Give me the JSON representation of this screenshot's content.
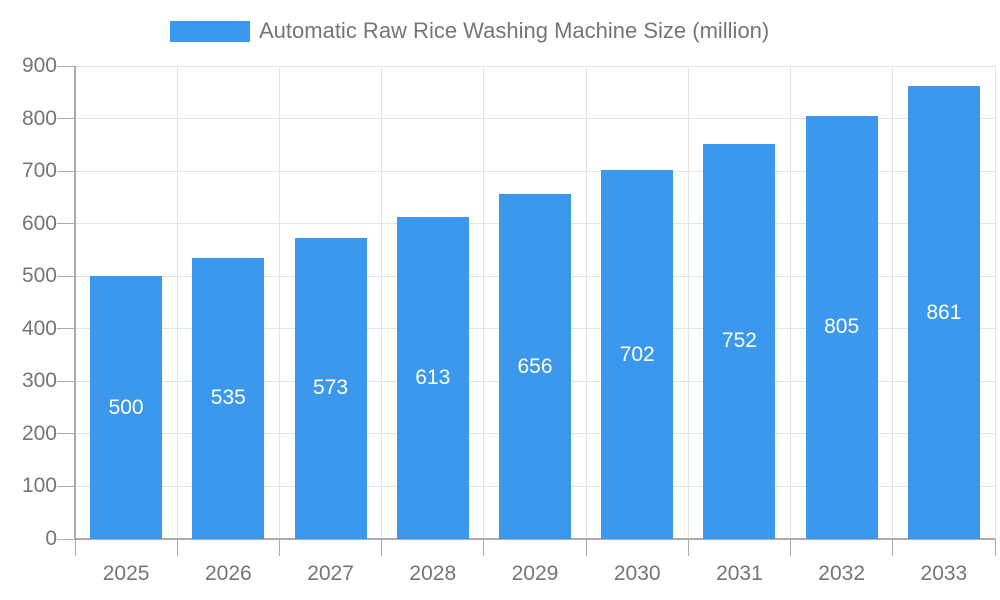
{
  "legend": {
    "label": "Automatic Raw Rice Washing Machine Size (million)"
  },
  "chart_data": {
    "type": "bar",
    "title": "Automatic Raw Rice Washing Machine Size (million)",
    "categories": [
      "2025",
      "2026",
      "2027",
      "2028",
      "2029",
      "2030",
      "2031",
      "2032",
      "2033"
    ],
    "values": [
      500,
      535,
      573,
      613,
      656,
      702,
      752,
      805,
      861
    ],
    "series_name": "Automatic Raw Rice Washing Machine Size (million)",
    "xlabel": "",
    "ylabel": "",
    "ylim": [
      0,
      900
    ],
    "ytick_step": 100,
    "grid": true,
    "legend_position": "top",
    "data_labels": "inside-center",
    "colors": {
      "bar": "#3b98ec",
      "bar_label": "#ffffff",
      "text": "#757575",
      "grid": "#e3e3e3",
      "axis": "#ababab",
      "background": "#ffffff"
    }
  }
}
